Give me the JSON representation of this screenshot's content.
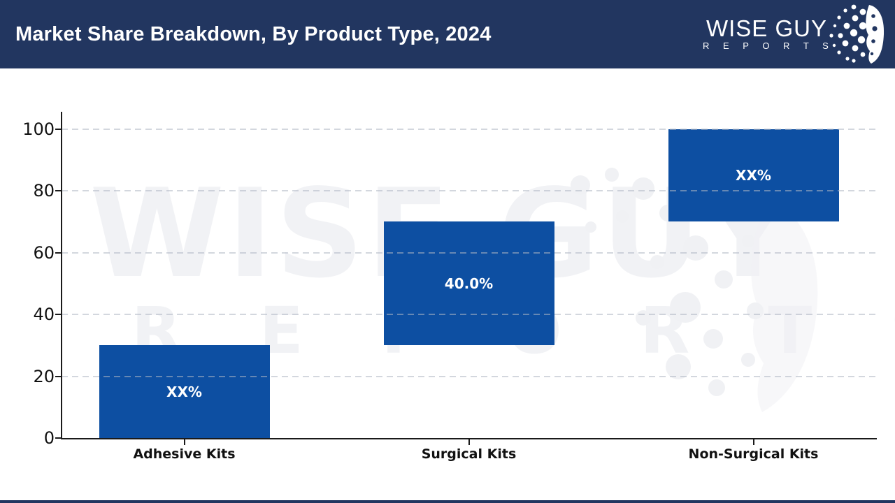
{
  "header": {
    "title": "Market Share Breakdown, By Product Type, 2024",
    "logo": {
      "line1": "WISE GUY",
      "line2": "R E P O R T S"
    }
  },
  "watermark": {
    "line1": "WISE GUY",
    "line2": "R E P O R T S"
  },
  "colors": {
    "header_bg": "#223660",
    "bar": "#0d4fa2",
    "bar_label": "#ffffff",
    "axis": "#1a1a1a",
    "axis_text": "#111111",
    "grid": "rgba(175,182,195,0.55)",
    "watermark": "#f1f2f5",
    "border": "#d9d9d9"
  },
  "chart_data": {
    "type": "bar",
    "subtype": "floating-segment (stacked waterfall of shares)",
    "title": "Market Share Breakdown, By Product Type, 2024",
    "categories": [
      "Adhesive Kits",
      "Surgical Kits",
      "Non-Surgical Kits"
    ],
    "series": [
      {
        "name": "Market share (%)",
        "segments": [
          {
            "category": "Adhesive Kits",
            "start": 0,
            "end": 30,
            "label": "XX%"
          },
          {
            "category": "Surgical Kits",
            "start": 30,
            "end": 70,
            "label": "40.0%"
          },
          {
            "category": "Non-Surgical Kits",
            "start": 70,
            "end": 100,
            "label": "XX%"
          }
        ]
      }
    ],
    "xlabel": "",
    "ylabel": "",
    "yticks": [
      0,
      20,
      40,
      60,
      80,
      100
    ],
    "ylim": [
      0,
      105.6
    ],
    "grid": "horizontal dashed, drawn over bars",
    "legend": "none"
  }
}
